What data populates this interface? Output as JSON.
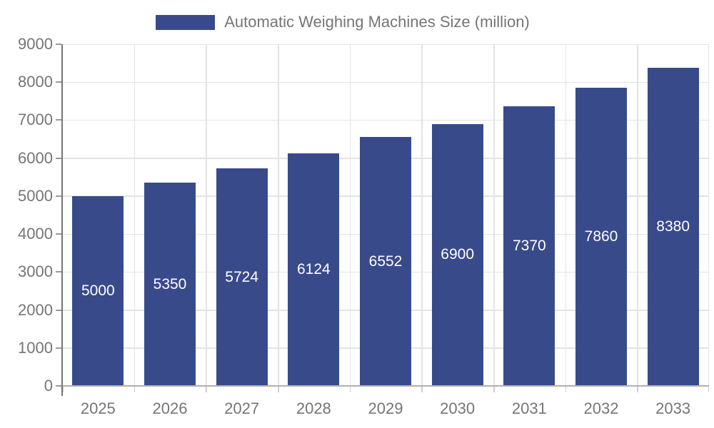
{
  "legend": {
    "label": "Automatic Weighing Machines Size (million)"
  },
  "chart_data": {
    "type": "bar",
    "title": "",
    "xlabel": "",
    "ylabel": "",
    "categories": [
      "2025",
      "2026",
      "2027",
      "2028",
      "2029",
      "2030",
      "2031",
      "2032",
      "2033"
    ],
    "series": [
      {
        "name": "Automatic Weighing Machines Size (million)",
        "values": [
          5000,
          5350,
          5724,
          6124,
          6552,
          6900,
          7370,
          7860,
          8380
        ]
      }
    ],
    "value_labels": [
      "5000",
      "5350",
      "5724",
      "6124",
      "6552",
      "6900",
      "7370",
      "7860",
      "8380"
    ],
    "ylim": [
      0,
      9000
    ],
    "yticks": [
      0,
      1000,
      2000,
      3000,
      4000,
      5000,
      6000,
      7000,
      8000,
      9000
    ],
    "grid": true,
    "legend_position": "top-center",
    "colors": {
      "bar": "#394A8B",
      "value_label": "#FFFFFF",
      "grid": "#E3E3E3",
      "y_axis": "#757575",
      "bottom_axis": "#B0B0B0",
      "tick_label": "#757575"
    }
  }
}
